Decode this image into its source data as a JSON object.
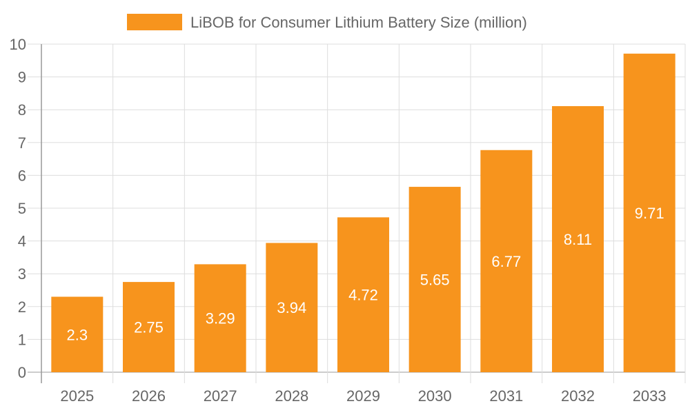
{
  "chart_data": {
    "type": "bar",
    "categories": [
      "2025",
      "2026",
      "2027",
      "2028",
      "2029",
      "2030",
      "2031",
      "2032",
      "2033"
    ],
    "series": [
      {
        "name": "LiBOB for Consumer Lithium Battery Size (million)",
        "values": [
          2.3,
          2.75,
          3.29,
          3.94,
          4.72,
          5.65,
          6.77,
          8.11,
          9.71
        ]
      }
    ],
    "data_labels": [
      "2.3",
      "2.75",
      "3.29",
      "3.94",
      "4.72",
      "5.65",
      "6.77",
      "8.11",
      "9.71"
    ],
    "yticks": [
      "0",
      "1",
      "2",
      "3",
      "4",
      "5",
      "6",
      "7",
      "8",
      "9",
      "10"
    ],
    "ylim": [
      0,
      10
    ],
    "grid": true,
    "legend": "top",
    "colors": {
      "bar": "#F7941D",
      "text": "#666666",
      "grid": "#dddddd",
      "label": "#ffffff"
    }
  }
}
